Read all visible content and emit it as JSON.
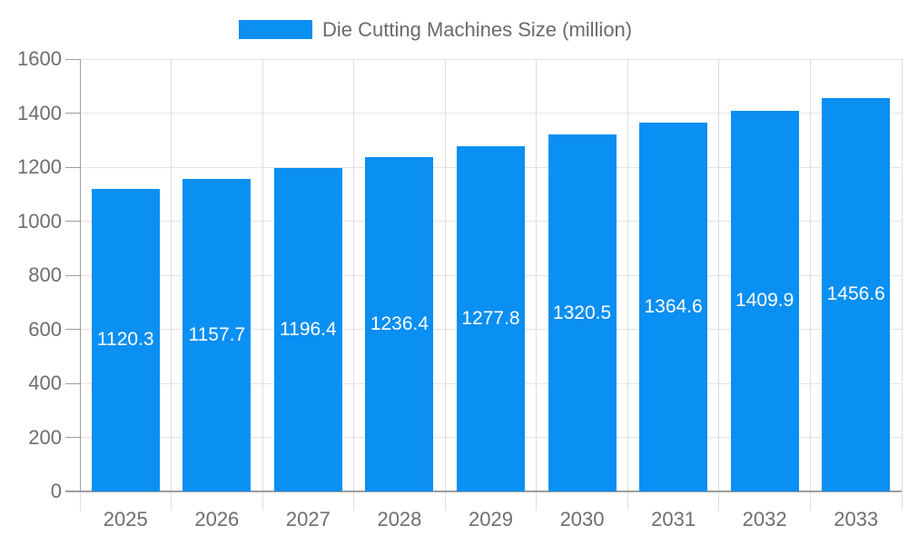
{
  "chart_data": {
    "type": "bar",
    "legend": "Die Cutting Machines Size (million)",
    "legend_position": "top-center",
    "categories": [
      "2025",
      "2026",
      "2027",
      "2028",
      "2029",
      "2030",
      "2031",
      "2032",
      "2033"
    ],
    "values": [
      1120.3,
      1157.7,
      1196.4,
      1236.4,
      1277.8,
      1320.5,
      1364.6,
      1409.9,
      1456.6
    ],
    "value_labels": [
      "1120.3",
      "1157.7",
      "1196.4",
      "1236.4",
      "1277.8",
      "1320.5",
      "1364.6",
      "1409.9",
      "1456.6"
    ],
    "xlabel": "",
    "ylabel": "",
    "ylim": [
      0,
      1600
    ],
    "yticks": [
      0,
      200,
      400,
      600,
      800,
      1000,
      1200,
      1400,
      1600
    ],
    "grid": true
  },
  "colors": {
    "bar": "#0a8ff2",
    "grid_line": "#e4e4e4",
    "axis_line": "#9e9e9e",
    "minor_tick": "#dedede",
    "axis_text": "#6e6e6e",
    "legend_text": "#6a6a6a",
    "value_text": "#ffffff",
    "background": "#ffffff"
  }
}
